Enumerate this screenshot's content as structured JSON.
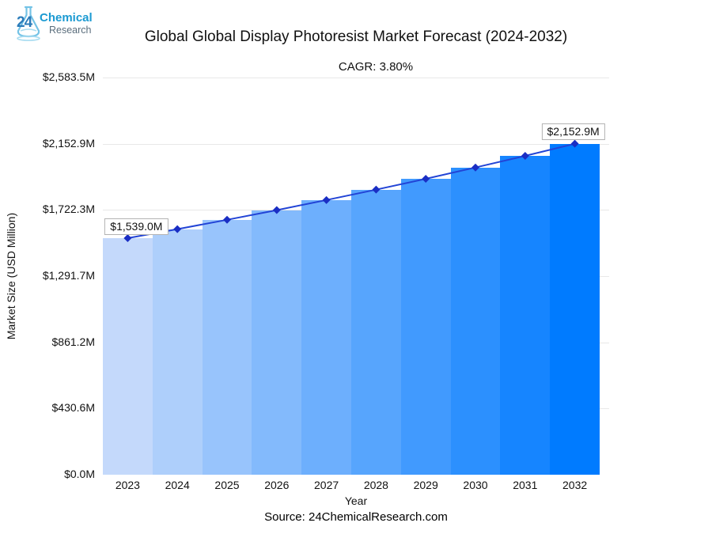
{
  "logo": {
    "number": "24",
    "line1": "Chemical",
    "line2": "Research",
    "flask_color": "#74c3e6",
    "number_color": "#2b7cba",
    "line1_color": "#1b9ad2",
    "line2_color": "#5a6d7c"
  },
  "source": "Source: 24ChemicalResearch.com",
  "chart_data": {
    "type": "bar",
    "overlay": "line",
    "title": "Global Global Display Photoresist Market Forecast (2024-2032)",
    "subtitle": "CAGR: 3.80%",
    "xlabel": "Year",
    "ylabel": "Market Size (USD Million)",
    "categories": [
      "2023",
      "2024",
      "2025",
      "2026",
      "2027",
      "2028",
      "2029",
      "2030",
      "2031",
      "2032"
    ],
    "values": [
      1539.0,
      1597.5,
      1658.2,
      1721.2,
      1786.6,
      1854.5,
      1925.0,
      1998.1,
      2074.0,
      2152.9
    ],
    "ylim": [
      0,
      2583.5
    ],
    "grid": true,
    "legend": "none",
    "yticks": [
      {
        "label": "$0.0M",
        "value": 0
      },
      {
        "label": "$430.6M",
        "value": 430.6
      },
      {
        "label": "$861.2M",
        "value": 861.2
      },
      {
        "label": "$1,291.7M",
        "value": 1291.7
      },
      {
        "label": "$1,722.3M",
        "value": 1722.3
      },
      {
        "label": "$2,152.9M",
        "value": 2152.9
      },
      {
        "label": "$2,583.5M",
        "value": 2583.5
      }
    ],
    "bar_colors": [
      "#c4d9fb",
      "#aecffb",
      "#98c4fc",
      "#83bafc",
      "#6daffd",
      "#57a5fd",
      "#419afe",
      "#2c90fe",
      "#1685ff",
      "#007bff"
    ],
    "line_color": "#2244d6",
    "marker_color": "#1a2ec4",
    "annotations": [
      {
        "index": 0,
        "label": "$1,539.0M",
        "dx": 11
      },
      {
        "index": 9,
        "label": "$2,152.9M",
        "dx": -2
      }
    ]
  }
}
